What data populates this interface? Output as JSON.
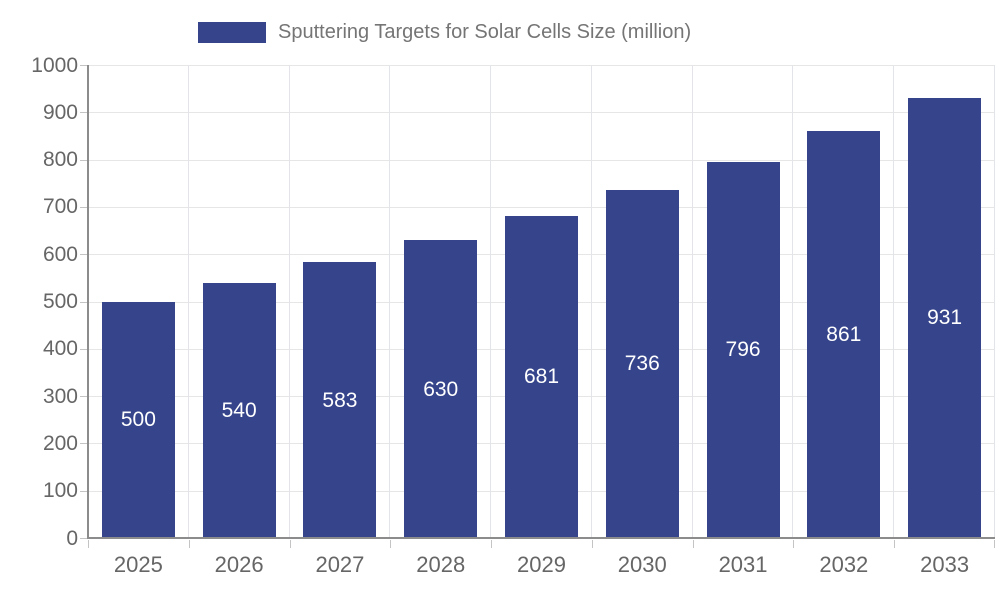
{
  "legend": {
    "label": "Sputtering Targets for Solar Cells Size (million)",
    "swatch_color": "#36458B"
  },
  "chart_data": {
    "type": "bar",
    "title": "Sputtering Targets for Solar Cells Size (million)",
    "categories": [
      "2025",
      "2026",
      "2027",
      "2028",
      "2029",
      "2030",
      "2031",
      "2032",
      "2033"
    ],
    "values": [
      500,
      540,
      583,
      630,
      681,
      736,
      796,
      861,
      931
    ],
    "series": [
      {
        "name": "Sputtering Targets for Solar Cells Size (million)",
        "values": [
          500,
          540,
          583,
          630,
          681,
          736,
          796,
          861,
          931
        ]
      }
    ],
    "xlabel": "",
    "ylabel": "",
    "ylim": [
      0,
      1000
    ],
    "yticks": [
      0,
      100,
      200,
      300,
      400,
      500,
      600,
      700,
      800,
      900,
      1000
    ],
    "grid": true,
    "legend_position": "top",
    "value_labels": "inside-center",
    "colors": {
      "bar": "#36458B",
      "value_label": "#FFFFFF",
      "axis_line": "#8C8C8C",
      "gridline_h": "#E6E6E6",
      "gridline_v": "#E3E3EA",
      "tick": "#C4C4C4",
      "tick_label": "#666666",
      "legend_text": "#757575"
    }
  }
}
